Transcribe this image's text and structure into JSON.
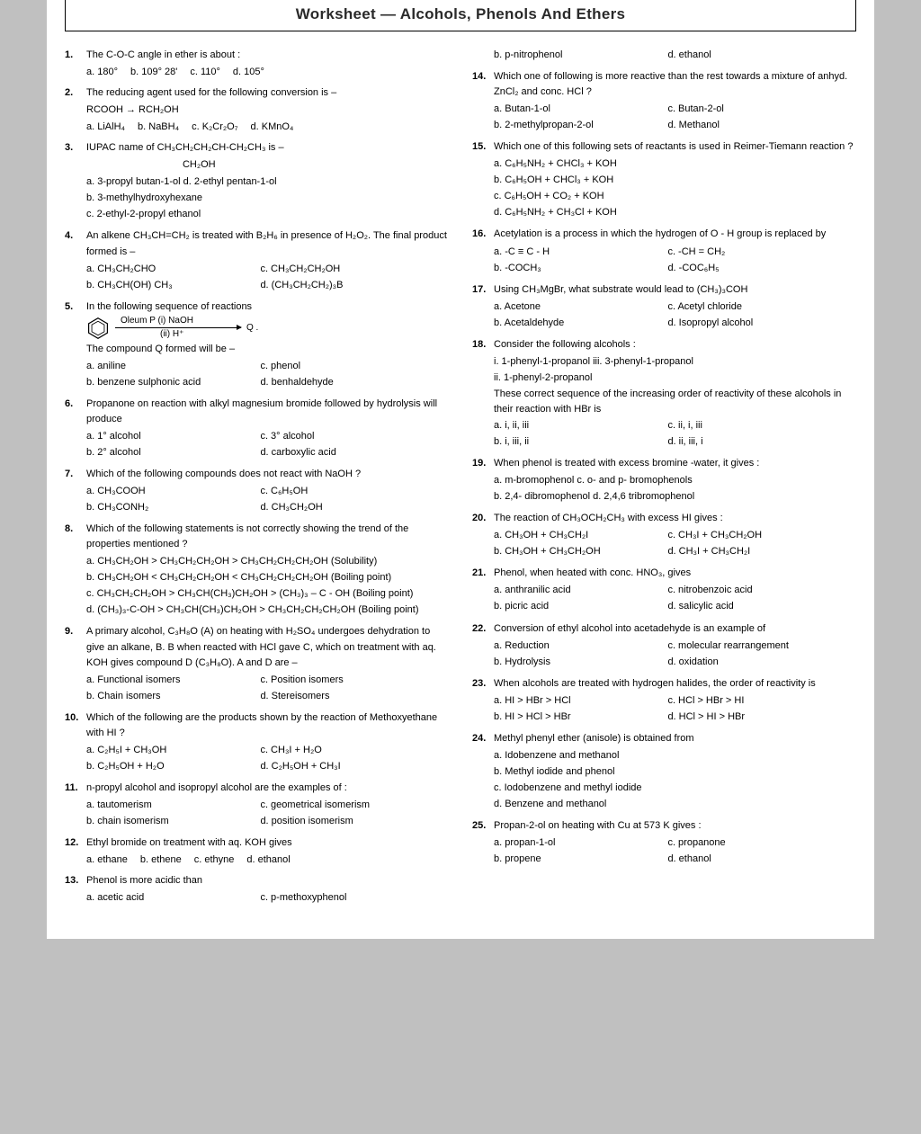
{
  "title": "Worksheet — Alcohols, Phenols And Ethers",
  "left": [
    {
      "n": "1.",
      "stem": "The C-O-C angle in ether is about :",
      "rows": [
        [
          "a.  180°",
          "b. 109° 28'",
          "c. 110°",
          "d. 105°"
        ]
      ]
    },
    {
      "n": "2.",
      "stem": "The reducing agent used for the following conversion is –",
      "extra": "RCOOH → RCH₂OH",
      "rows": [
        [
          "a.  LiAlH₄",
          "b. NaBH₄",
          "c. K₂Cr₂O₇",
          "d. KMnO₄"
        ]
      ]
    },
    {
      "n": "3.",
      "stem": "IUPAC name of CH₃CH₂CH₂CH-CH₂CH₃ is –",
      "extra2": "                                   CH₂OH",
      "blocks": [
        "a.  3-propyl butan-1-ol   d. 2-ethyl pentan-1-ol",
        "b.  3-methylhydroxyhexane",
        "c.  2-ethyl-2-propyl ethanol"
      ]
    },
    {
      "n": "4.",
      "stem": "An alkene CH₃CH=CH₂ is treated with B₂H₆ in presence of H₂O₂. The final product formed is –",
      "halves": [
        [
          "a.  CH₃CH₂CHO",
          "c. CH₃CH₂CH₂OH"
        ],
        [
          "b.  CH₃CH(OH) CH₃",
          "d. (CH₃CH₂CH₂)₃B"
        ]
      ]
    },
    {
      "n": "5.",
      "stem": "In the following sequence of reactions",
      "scheme": {
        "top": "Oleum   P   (i) NaOH",
        "bot": "(ii) H⁺",
        "end": "Q ."
      },
      "post": "The compound Q formed will be –",
      "halves": [
        [
          "a.  aniline",
          "c. phenol"
        ],
        [
          "b.  benzene sulphonic acid",
          "d. benhaldehyde"
        ]
      ]
    },
    {
      "n": "6.",
      "stem": "Propanone on reaction with alkyl magnesium bromide followed by hydrolysis will produce",
      "halves": [
        [
          "a.  1° alcohol",
          "c. 3° alcohol"
        ],
        [
          "b.  2° alcohol",
          "d. carboxylic acid"
        ]
      ]
    },
    {
      "n": "7.",
      "stem": "Which of the following compounds does not react with NaOH ?",
      "halves": [
        [
          "a.  CH₃COOH",
          "c. C₆H₅OH"
        ],
        [
          "b.  CH₃CONH₂",
          "d. CH₃CH₂OH"
        ]
      ]
    },
    {
      "n": "8.",
      "stem": "Which of the following statements is not correctly showing the trend of the properties mentioned ?",
      "blocks": [
        "a.  CH₃CH₂OH > CH₃CH₂CH₂OH > CH₃CH₂CH₂CH₂OH (Solubility)",
        "b.  CH₃CH₂OH < CH₃CH₂CH₂OH < CH₃CH₂CH₂CH₂OH (Boiling point)",
        "c.  CH₃CH₂CH₂OH > CH₃CH(CH₃)CH₂OH > (CH₃)₃ – C - OH (Boiling point)",
        "d.  (CH₃)₃-C-OH > CH₃CH(CH₃)CH₂OH > CH₃CH₂CH₂CH₂OH (Boiling point)"
      ]
    },
    {
      "n": "9.",
      "stem": "A primary alcohol, C₃H₈O (A) on heating with H₂SO₄ undergoes dehydration to give an alkane, B. B when reacted with HCl gave C, which on treatment with aq. KOH gives compound D (C₃H₈O).  A and D are –",
      "halves": [
        [
          "a.  Functional isomers",
          "c. Position isomers"
        ],
        [
          "b.  Chain isomers",
          "d. Stereisomers"
        ]
      ]
    },
    {
      "n": "10.",
      "stem": "Which of the following are the products shown by the reaction of Methoxyethane with HI ?",
      "halves": [
        [
          "a.  C₂H₅I + CH₃OH",
          "c. CH₃I + H₂O"
        ],
        [
          "b.  C₂H₅OH + H₂O",
          "d. C₂H₅OH + CH₃I"
        ]
      ]
    },
    {
      "n": "11.",
      "stem": "n-propyl alcohol and isopropyl alcohol are the examples of :",
      "halves": [
        [
          "a.  tautomerism",
          "c. geometrical isomerism"
        ],
        [
          "b.  chain isomerism",
          "d. position isomerism"
        ]
      ]
    },
    {
      "n": "12.",
      "stem": "Ethyl bromide on treatment with aq. KOH gives",
      "rows": [
        [
          "a.  ethane",
          "b. ethene",
          "c. ethyne",
          "d. ethanol"
        ]
      ]
    },
    {
      "n": "13.",
      "stem": "Phenol is more acidic than",
      "halves": [
        [
          "a.  acetic acid",
          "c. p-methoxyphenol"
        ]
      ]
    }
  ],
  "right_pre": {
    "halves": [
      [
        "b.  p-nitrophenol",
        "d. ethanol"
      ]
    ]
  },
  "right": [
    {
      "n": "14.",
      "stem": "Which one of following is more reactive than the rest towards a mixture of anhyd. ZnCl₂ and conc. HCl ?",
      "halves": [
        [
          "a.  Butan-1-ol",
          "c. Butan-2-ol"
        ],
        [
          "b.  2-methylpropan-2-ol",
          "d. Methanol"
        ]
      ]
    },
    {
      "n": "15.",
      "stem": "Which one of this following sets of reactants is used in Reimer-Tiemann reaction ?",
      "blocks": [
        "a.  C₆H₅NH₂ + CHCl₃ + KOH",
        "b.  C₆H₅OH + CHCl₃ + KOH",
        "c.  C₆H₅OH + CO₂ + KOH",
        "d.  C₆H₅NH₂ + CH₃Cl + KOH"
      ]
    },
    {
      "n": "16.",
      "stem": "Acetylation is a process in which the hydrogen of O - H group is replaced by",
      "halves": [
        [
          "a.  -C ≡ C - H",
          "c. -CH = CH₂"
        ],
        [
          "b.  -COCH₃",
          "d. -COC₆H₅"
        ]
      ]
    },
    {
      "n": "17.",
      "stem": "Using CH₃MgBr, what substrate would lead to (CH₃)₃COH",
      "halves": [
        [
          "a.  Acetone",
          "c. Acetyl chloride"
        ],
        [
          "b.  Acetaldehyde",
          "d. Isopropyl alcohol"
        ]
      ]
    },
    {
      "n": "18.",
      "stem": "Consider the following alcohols :",
      "blocks": [
        "i.   1-phenyl-1-propanol  iii. 3-phenyl-1-propanol",
        "ii.  1-phenyl-2-propanol",
        "These correct sequence of the increasing order of reactivity of these alcohols in their reaction with HBr is"
      ],
      "halves": [
        [
          "a.  i, ii, iii",
          "c. ii, i, iii"
        ],
        [
          "b.  i, iii, ii",
          "d. ii, iii, i"
        ]
      ]
    },
    {
      "n": "19.",
      "stem": "When phenol is treated with excess bromine -water, it gives :",
      "blocks": [
        "a.  m-bromophenol   c. o- and p- bromophenols",
        "b.  2,4- dibromophenol  d. 2,4,6 tribromophenol"
      ]
    },
    {
      "n": "20.",
      "stem": "The reaction of CH₃OCH₂CH₃ with excess HI gives :",
      "halves": [
        [
          "a.  CH₃OH + CH₃CH₂I",
          "c. CH₃I + CH₃CH₂OH"
        ],
        [
          "b.  CH₃OH + CH₃CH₂OH",
          "d. CH₃I + CH₃CH₂I"
        ]
      ]
    },
    {
      "n": "21.",
      "stem": "Phenol, when heated with conc. HNO₃, gives",
      "halves": [
        [
          "a.  anthranilic acid",
          "c. nitrobenzoic acid"
        ],
        [
          "b.  picric acid",
          "d. salicylic acid"
        ]
      ]
    },
    {
      "n": "22.",
      "stem": "Conversion of ethyl alcohol into acetadehyde is an example of",
      "halves": [
        [
          "a.  Reduction",
          "c. molecular rearrangement"
        ],
        [
          "b.  Hydrolysis",
          "d. oxidation"
        ]
      ]
    },
    {
      "n": "23.",
      "stem": "When alcohols are treated with hydrogen halides, the order of reactivity is",
      "halves": [
        [
          "a.  HI > HBr > HCl",
          "c. HCl > HBr > HI"
        ],
        [
          "b.  HI > HCl > HBr",
          "d. HCl > HI > HBr"
        ]
      ]
    },
    {
      "n": "24.",
      "stem": "Methyl phenyl ether (anisole) is obtained from",
      "blocks": [
        "a.  Idobenzene and methanol",
        "b.  Methyl iodide and phenol",
        "c.  Iodobenzene and methyl iodide",
        "d.  Benzene and methanol"
      ]
    },
    {
      "n": "25.",
      "stem": "Propan-2-ol on heating with Cu at 573 K gives :",
      "halves": [
        [
          "a.  propan-1-ol",
          "c. propanone"
        ],
        [
          "b.  propene",
          "d. ethanol"
        ]
      ]
    }
  ]
}
